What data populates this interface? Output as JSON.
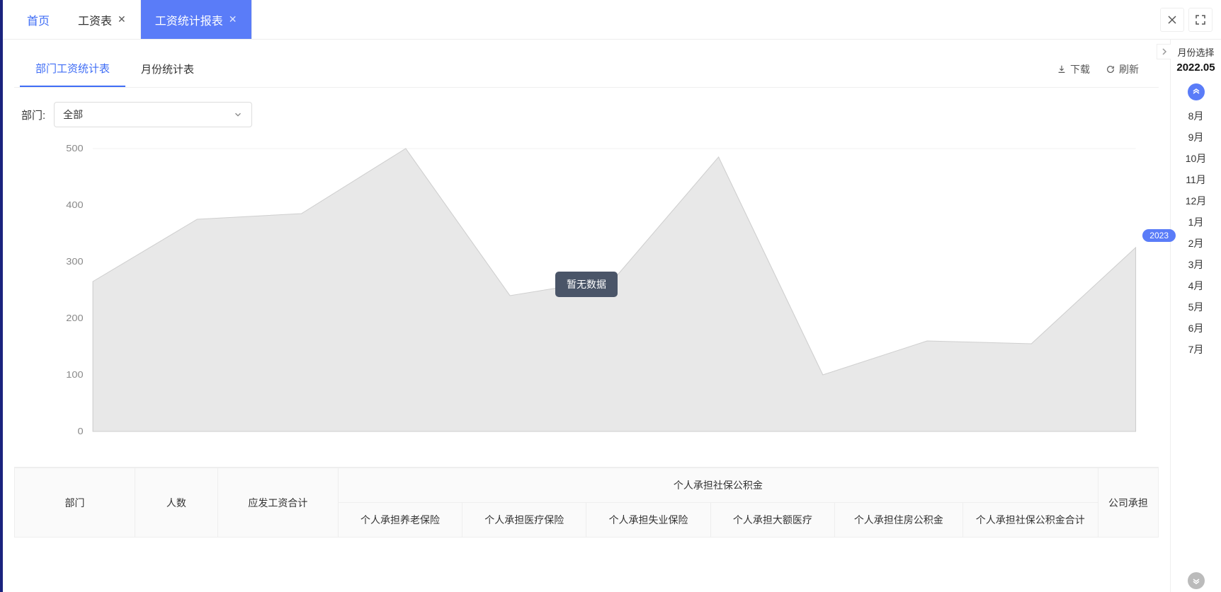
{
  "tabs": {
    "home": "首页",
    "t1": "工资表",
    "t2": "工资统计报表"
  },
  "panel": {
    "tab1": "部门工资统计表",
    "tab2": "月份统计表",
    "download": "下载",
    "refresh": "刷新"
  },
  "filter": {
    "label": "部门:",
    "selected": "全部"
  },
  "chart": {
    "type": "area",
    "ylim": [
      0,
      500
    ],
    "yticks": [
      0,
      100,
      200,
      300,
      400,
      500
    ],
    "values": [
      265,
      375,
      385,
      500,
      240,
      270,
      485,
      100,
      160,
      155,
      325
    ],
    "fill_color": "#e8e8e8",
    "stroke_color": "#cfcfcf",
    "axis_color": "#cccccc",
    "tick_text_color": "#888888",
    "background_color": "#ffffff",
    "no_data_text": "暂无数据",
    "tooltip_bg": "#4a5568",
    "tooltip_fg": "#ffffff"
  },
  "table": {
    "group_header": "个人承担社保公积金",
    "cols_left": [
      "部门",
      "人数",
      "应发工资合计"
    ],
    "cols_sub": [
      "个人承担养老保险",
      "个人承担医疗保险",
      "个人承担失业保险",
      "个人承担大额医疗",
      "个人承担住房公积金",
      "个人承担社保公积金合计"
    ],
    "col_overflow": "公司承担"
  },
  "month_picker": {
    "title": "月份选择",
    "current": "2022.05",
    "year_badge": "2023",
    "months": [
      "8月",
      "9月",
      "10月",
      "11月",
      "12月",
      "1月",
      "2月",
      "3月",
      "4月",
      "5月",
      "6月",
      "7月"
    ]
  },
  "colors": {
    "accent": "#5a7cf8",
    "link": "#3f6df5"
  }
}
